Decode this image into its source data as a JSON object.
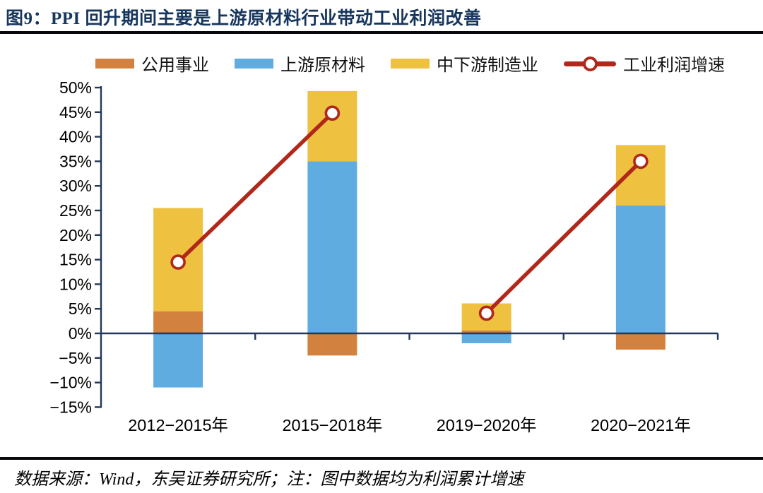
{
  "page": {
    "title": "图9：PPI 回升期间主要是上游原材料行业带动工业利润改善",
    "footer": "数据来源：Wind，东吴证券研究所；注：图中数据均为利润累计增速"
  },
  "colors": {
    "title_text": "#17365D",
    "axis": "#24385C",
    "tick_label": "#000000",
    "utilities": "#D3813F",
    "upstream": "#5FACE0",
    "manufacturing": "#EEC140",
    "line": "#B1281A",
    "rule": "#06080c",
    "marker_fill": "#FFFFFF"
  },
  "chart_data": {
    "type": "bar",
    "subtype": "stacked-bars-with-line-overlay",
    "title": "图9：PPI 回升期间主要是上游原材料行业带动工业利润改善",
    "xlabel": "",
    "ylabel": "",
    "categories": [
      "2012−2015年",
      "2015−2018年",
      "2019−2020年",
      "2020−2021年"
    ],
    "series": [
      {
        "name": "公用事业",
        "color_key": "utilities",
        "values": [
          4.5,
          -4.5,
          0.6,
          -3.3
        ]
      },
      {
        "name": "上游原材料",
        "color_key": "upstream",
        "values": [
          -11.0,
          35.0,
          -2.0,
          26.0
        ]
      },
      {
        "name": "中下游制造业",
        "color_key": "manufacturing",
        "values": [
          21.0,
          14.3,
          5.5,
          12.3
        ]
      }
    ],
    "line_series": {
      "name": "工业利润增速",
      "color_key": "line",
      "values": [
        14.5,
        44.8,
        4.1,
        35.0
      ],
      "segments": [
        [
          0,
          1
        ],
        [
          2,
          3
        ]
      ],
      "marker": "open-circle"
    },
    "ylim": [
      -15,
      50
    ],
    "ytick_step": 5,
    "ytick_labels": [
      "50%",
      "45%",
      "40%",
      "35%",
      "30%",
      "25%",
      "20%",
      "15%",
      "10%",
      "5%",
      "0%",
      "−5%",
      "−10%",
      "−15%"
    ],
    "grid": false,
    "legend_position": "top",
    "note": "图中数据均为利润累计增速"
  }
}
